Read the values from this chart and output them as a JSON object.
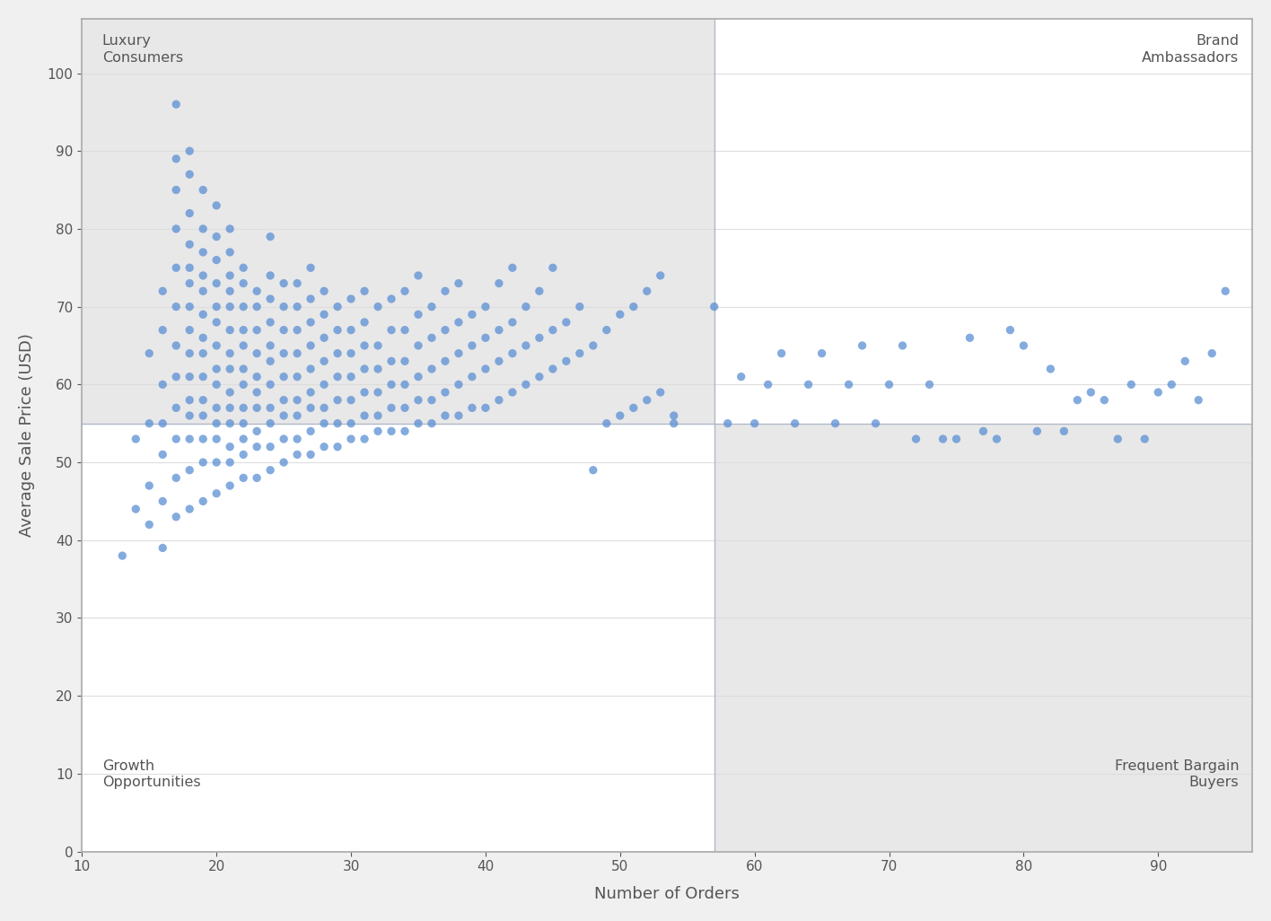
{
  "xlabel": "Number of Orders",
  "ylabel": "Average Sale Price (USD)",
  "xlim": [
    10,
    97
  ],
  "ylim": [
    0,
    107
  ],
  "xticks": [
    10,
    20,
    30,
    40,
    50,
    60,
    70,
    80,
    90
  ],
  "yticks": [
    0,
    10,
    20,
    30,
    40,
    50,
    60,
    70,
    80,
    90,
    100
  ],
  "vline": 57,
  "hline": 55,
  "quadrant_labels": {
    "top_left": "Luxury\nConsumers",
    "top_right": "Brand\nAmbassadors",
    "bottom_left": "Growth\nOpportunities",
    "bottom_right": "Frequent Bargain\nBuyers"
  },
  "scatter_color": "#5B8FD4",
  "scatter_alpha": 0.75,
  "scatter_size": 45,
  "bg_color": "#FFFFFF",
  "quadrant_shade_color": "#E8E8E8",
  "figure_bg": "#F0F0F0",
  "border_color": "#555555",
  "label_color": "#555555",
  "points_x": [
    13,
    14,
    14,
    15,
    15,
    15,
    15,
    16,
    16,
    16,
    16,
    16,
    16,
    16,
    17,
    17,
    17,
    17,
    17,
    17,
    17,
    17,
    17,
    17,
    17,
    17,
    18,
    18,
    18,
    18,
    18,
    18,
    18,
    18,
    18,
    18,
    18,
    18,
    18,
    18,
    18,
    19,
    19,
    19,
    19,
    19,
    19,
    19,
    19,
    19,
    19,
    19,
    19,
    19,
    19,
    20,
    20,
    20,
    20,
    20,
    20,
    20,
    20,
    20,
    20,
    20,
    20,
    20,
    20,
    21,
    21,
    21,
    21,
    21,
    21,
    21,
    21,
    21,
    21,
    21,
    21,
    21,
    21,
    22,
    22,
    22,
    22,
    22,
    22,
    22,
    22,
    22,
    22,
    22,
    22,
    23,
    23,
    23,
    23,
    23,
    23,
    23,
    23,
    23,
    23,
    24,
    24,
    24,
    24,
    24,
    24,
    24,
    24,
    24,
    24,
    24,
    25,
    25,
    25,
    25,
    25,
    25,
    25,
    25,
    25,
    26,
    26,
    26,
    26,
    26,
    26,
    26,
    26,
    26,
    27,
    27,
    27,
    27,
    27,
    27,
    27,
    27,
    27,
    28,
    28,
    28,
    28,
    28,
    28,
    28,
    28,
    29,
    29,
    29,
    29,
    29,
    29,
    29,
    30,
    30,
    30,
    30,
    30,
    30,
    30,
    31,
    31,
    31,
    31,
    31,
    31,
    31,
    32,
    32,
    32,
    32,
    32,
    32,
    33,
    33,
    33,
    33,
    33,
    33,
    34,
    34,
    34,
    34,
    34,
    34,
    35,
    35,
    35,
    35,
    35,
    35,
    36,
    36,
    36,
    36,
    36,
    37,
    37,
    37,
    37,
    37,
    38,
    38,
    38,
    38,
    38,
    39,
    39,
    39,
    39,
    40,
    40,
    40,
    40,
    41,
    41,
    41,
    41,
    42,
    42,
    42,
    42,
    43,
    43,
    43,
    44,
    44,
    44,
    45,
    45,
    45,
    46,
    46,
    47,
    47,
    48,
    48,
    49,
    49,
    50,
    50,
    51,
    51,
    52,
    52,
    53,
    53,
    54,
    54,
    57,
    58,
    59,
    60,
    61,
    62,
    63,
    64,
    65,
    66,
    67,
    68,
    69,
    70,
    71,
    72,
    73,
    74,
    75,
    76,
    77,
    78,
    79,
    80,
    81,
    82,
    83,
    84,
    85,
    86,
    87,
    88,
    89,
    90,
    91,
    92,
    93,
    94,
    95
  ],
  "points_y": [
    38,
    44,
    53,
    42,
    47,
    55,
    64,
    39,
    45,
    51,
    55,
    60,
    67,
    72,
    43,
    48,
    53,
    57,
    61,
    65,
    70,
    75,
    80,
    85,
    89,
    96,
    44,
    49,
    53,
    56,
    58,
    61,
    64,
    67,
    70,
    73,
    75,
    78,
    82,
    87,
    90,
    45,
    50,
    53,
    56,
    58,
    61,
    64,
    66,
    69,
    72,
    74,
    77,
    80,
    85,
    46,
    50,
    53,
    55,
    57,
    60,
    62,
    65,
    68,
    70,
    73,
    76,
    79,
    83,
    47,
    50,
    52,
    55,
    57,
    59,
    62,
    64,
    67,
    70,
    72,
    74,
    77,
    80,
    48,
    51,
    53,
    55,
    57,
    60,
    62,
    65,
    67,
    70,
    73,
    75,
    48,
    52,
    54,
    57,
    59,
    61,
    64,
    67,
    70,
    72,
    49,
    52,
    55,
    57,
    60,
    63,
    65,
    68,
    71,
    74,
    79,
    50,
    53,
    56,
    58,
    61,
    64,
    67,
    70,
    73,
    51,
    53,
    56,
    58,
    61,
    64,
    67,
    70,
    73,
    51,
    54,
    57,
    59,
    62,
    65,
    68,
    71,
    75,
    52,
    55,
    57,
    60,
    63,
    66,
    69,
    72,
    52,
    55,
    58,
    61,
    64,
    67,
    70,
    53,
    55,
    58,
    61,
    64,
    67,
    71,
    53,
    56,
    59,
    62,
    65,
    68,
    72,
    54,
    56,
    59,
    62,
    65,
    70,
    54,
    57,
    60,
    63,
    67,
    71,
    54,
    57,
    60,
    63,
    67,
    72,
    55,
    58,
    61,
    65,
    69,
    74,
    55,
    58,
    62,
    66,
    70,
    56,
    59,
    63,
    67,
    72,
    56,
    60,
    64,
    68,
    73,
    57,
    61,
    65,
    69,
    57,
    62,
    66,
    70,
    58,
    63,
    67,
    73,
    59,
    64,
    68,
    75,
    60,
    65,
    70,
    61,
    66,
    72,
    62,
    67,
    75,
    63,
    68,
    64,
    70,
    49,
    65,
    55,
    67,
    56,
    69,
    57,
    70,
    58,
    72,
    59,
    74,
    55,
    56,
    70,
    55,
    61,
    55,
    60,
    64,
    55,
    60,
    64,
    55,
    60,
    65,
    55,
    60,
    65,
    53,
    60,
    53,
    53,
    66,
    54,
    53,
    67,
    65,
    54,
    62,
    54,
    58,
    59,
    58,
    53,
    60,
    53,
    59,
    60,
    63,
    58,
    64,
    72
  ]
}
